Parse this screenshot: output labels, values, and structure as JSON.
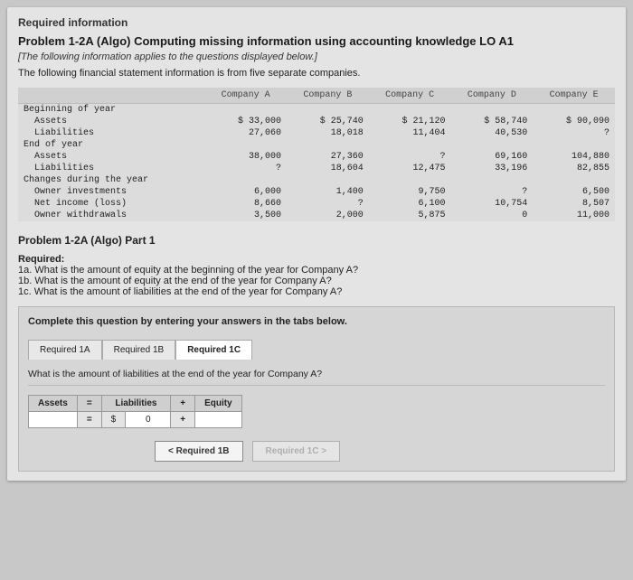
{
  "header": {
    "required_info": "Required information",
    "title": "Problem 1-2A (Algo) Computing missing information using accounting knowledge LO A1",
    "bracket": "[The following information applies to the questions displayed below.]",
    "desc": "The following financial statement information is from five separate companies."
  },
  "fin_table": {
    "columns": [
      "",
      "Company A",
      "Company B",
      "Company C",
      "Company D",
      "Company E"
    ],
    "rows": [
      {
        "label": "Beginning of year",
        "indent": false,
        "cells": [
          "",
          "",
          "",
          "",
          ""
        ]
      },
      {
        "label": "Assets",
        "indent": true,
        "cells": [
          "$ 33,000",
          "$ 25,740",
          "$ 21,120",
          "$ 58,740",
          "$ 90,090"
        ]
      },
      {
        "label": "Liabilities",
        "indent": true,
        "cells": [
          "27,060",
          "18,018",
          "11,404",
          "40,530",
          "?"
        ]
      },
      {
        "label": "End of year",
        "indent": false,
        "cells": [
          "",
          "",
          "",
          "",
          ""
        ]
      },
      {
        "label": "Assets",
        "indent": true,
        "cells": [
          "38,000",
          "27,360",
          "?",
          "69,160",
          "104,880"
        ]
      },
      {
        "label": "Liabilities",
        "indent": true,
        "cells": [
          "?",
          "18,604",
          "12,475",
          "33,196",
          "82,855"
        ]
      },
      {
        "label": "Changes during the year",
        "indent": false,
        "cells": [
          "",
          "",
          "",
          "",
          ""
        ]
      },
      {
        "label": "Owner investments",
        "indent": true,
        "cells": [
          "6,000",
          "1,400",
          "9,750",
          "?",
          "6,500"
        ]
      },
      {
        "label": "Net income (loss)",
        "indent": true,
        "cells": [
          "8,660",
          "?",
          "6,100",
          "10,754",
          "8,507"
        ]
      },
      {
        "label": "Owner withdrawals",
        "indent": true,
        "cells": [
          "3,500",
          "2,000",
          "5,875",
          "0",
          "11,000"
        ]
      }
    ]
  },
  "part1": {
    "title": "Problem 1-2A (Algo) Part 1",
    "required_label": "Required:",
    "r1a": "1a. What is the amount of equity at the beginning of the year for Company A?",
    "r1b": "1b. What is the amount of equity at the end of the year for Company A?",
    "r1c": "1c. What is the amount of liabilities at the end of the year for Company A?"
  },
  "answer": {
    "instruction": "Complete this question by entering your answers in the tabs below.",
    "tabs": [
      "Required 1A",
      "Required 1B",
      "Required 1C"
    ],
    "active_tab": 2,
    "question": "What is the amount of liabilities at the end of the year for Company A?",
    "eq": {
      "headers": [
        "Assets",
        "=",
        "Liabilities",
        "+",
        "Equity"
      ],
      "values": [
        "",
        "=",
        "$",
        "0",
        "+",
        ""
      ]
    },
    "nav_prev": "Required 1B",
    "nav_next": "Required 1C"
  }
}
